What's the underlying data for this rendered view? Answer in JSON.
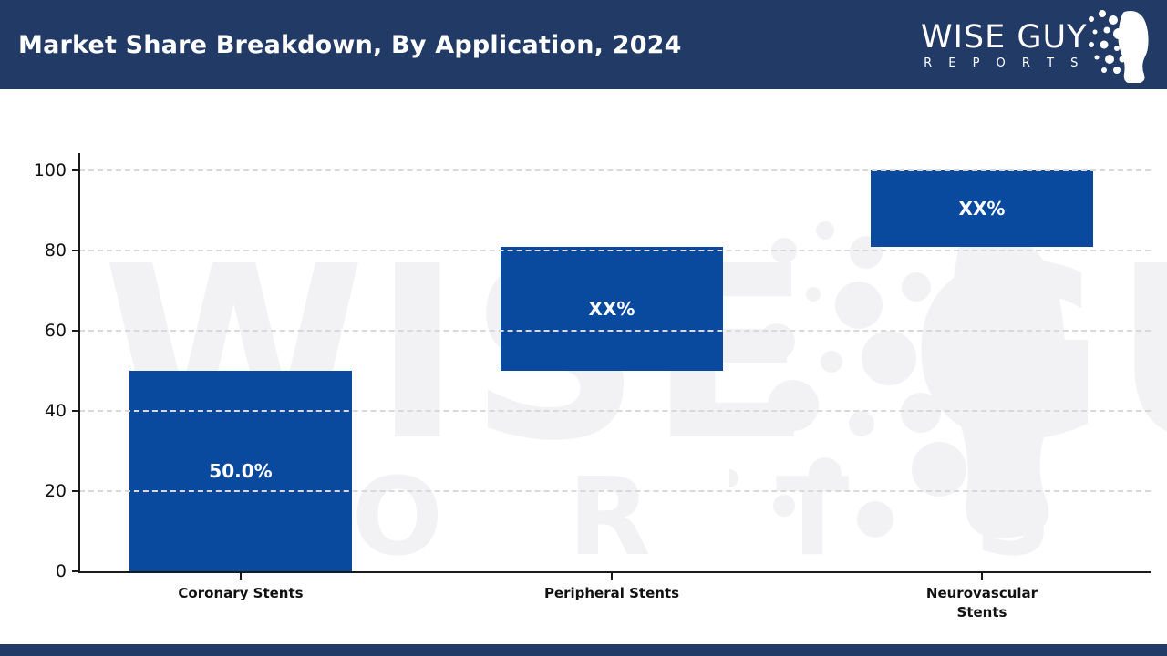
{
  "header": {
    "title": "Market Share Breakdown, By Application, 2024",
    "logo": {
      "line1": "WISE GUY",
      "line2": "R E P O R T S"
    }
  },
  "watermark": {
    "line1": "WISE GUY",
    "line2": "P O R T S"
  },
  "footer": {},
  "colors": {
    "navy": "#213a66",
    "bar_blue": "#0a4a9e",
    "gridline": "#d9d9d9",
    "axis": "#1a1a1a",
    "tick_text": "#111111",
    "bar_label_text": "#ffffff",
    "watermark": "#f2f2f4"
  },
  "chart_data": {
    "type": "bar",
    "subtype": "waterfall",
    "title": "Market Share Breakdown, By Application, 2024",
    "categories": [
      "Coronary Stents",
      "Peripheral Stents",
      "Neurovascular Stents"
    ],
    "segments": [
      {
        "category": "Coronary Stents",
        "label": "50.0%",
        "start": 0,
        "end": 50
      },
      {
        "category": "Peripheral Stents",
        "label": "XX%",
        "start": 50,
        "end": 81
      },
      {
        "category": "Neurovascular Stents",
        "label": "XX%",
        "start": 81,
        "end": 100
      }
    ],
    "ylim": [
      0,
      100
    ],
    "yticks": [
      0,
      20,
      40,
      60,
      80,
      100
    ],
    "xlabel": "",
    "ylabel": "",
    "grid": "horizontal-dashed",
    "legend": "none"
  }
}
